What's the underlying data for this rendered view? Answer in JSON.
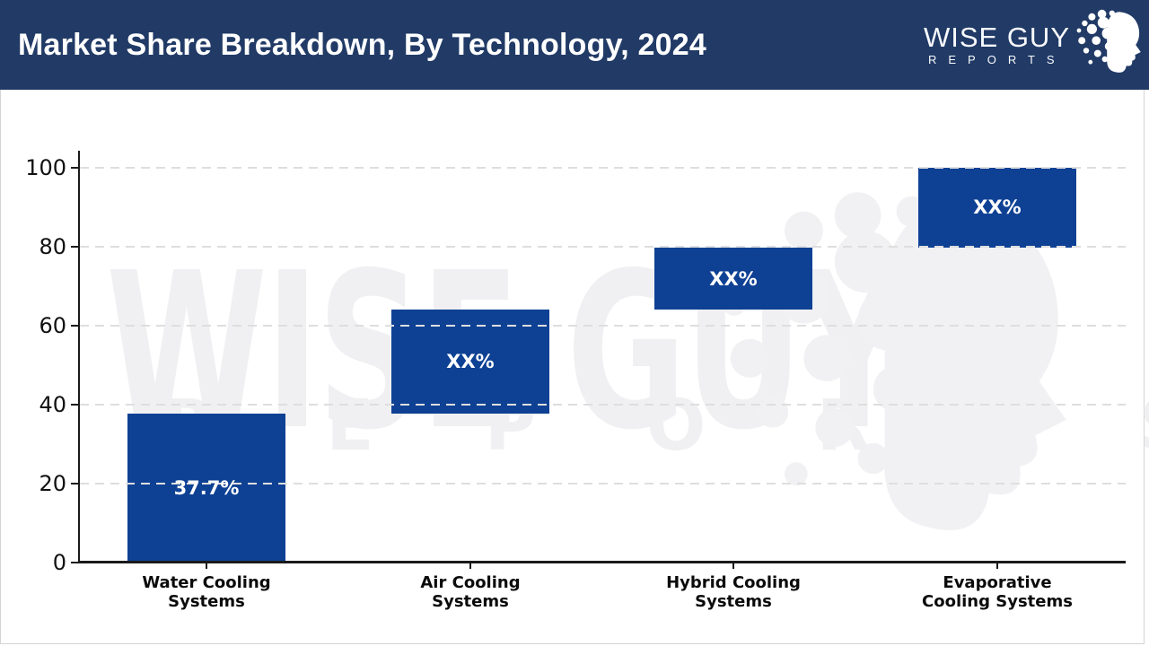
{
  "header": {
    "title": "Market Share Breakdown, By Technology, 2024",
    "logo": {
      "line1": "WISE GUY",
      "line2": "REPORTS"
    }
  },
  "watermark": {
    "line1": "WISE GUY",
    "line2": "R E P O R T S"
  },
  "colors": {
    "header_bg": "#213a66",
    "bar": "#0e4194",
    "bar_label": "#ffffff",
    "axis": "#1a1a1a",
    "gridline": "#dedede",
    "watermark": "#f0f0f2"
  },
  "chart_data": {
    "type": "bar",
    "subtype": "waterfall",
    "title": "Market Share Breakdown, By Technology, 2024",
    "xlabel": "",
    "ylabel": "",
    "ylim": [
      0,
      100
    ],
    "yticks": [
      0,
      20,
      40,
      60,
      80,
      100
    ],
    "grid": "horizontal-dashed",
    "legend": "none",
    "bar_color": "#0e4194",
    "categories": [
      "Water Cooling Systems",
      "Air Cooling Systems",
      "Hybrid Cooling Systems",
      "Evaporative Cooling Systems"
    ],
    "category_lines": [
      [
        "Water Cooling",
        "Systems"
      ],
      [
        "Air Cooling",
        "Systems"
      ],
      [
        "Hybrid Cooling",
        "Systems"
      ],
      [
        "Evaporative",
        "Cooling Systems"
      ]
    ],
    "segments": [
      {
        "category": "Water Cooling Systems",
        "start": 0,
        "end": 37.7,
        "label": "37.7%"
      },
      {
        "category": "Air Cooling Systems",
        "start": 37.7,
        "end": 64,
        "label": "XX%"
      },
      {
        "category": "Hybrid Cooling Systems",
        "start": 64,
        "end": 79.8,
        "label": "XX%"
      },
      {
        "category": "Evaporative Cooling Systems",
        "start": 79.8,
        "end": 100,
        "label": "XX%"
      }
    ]
  }
}
